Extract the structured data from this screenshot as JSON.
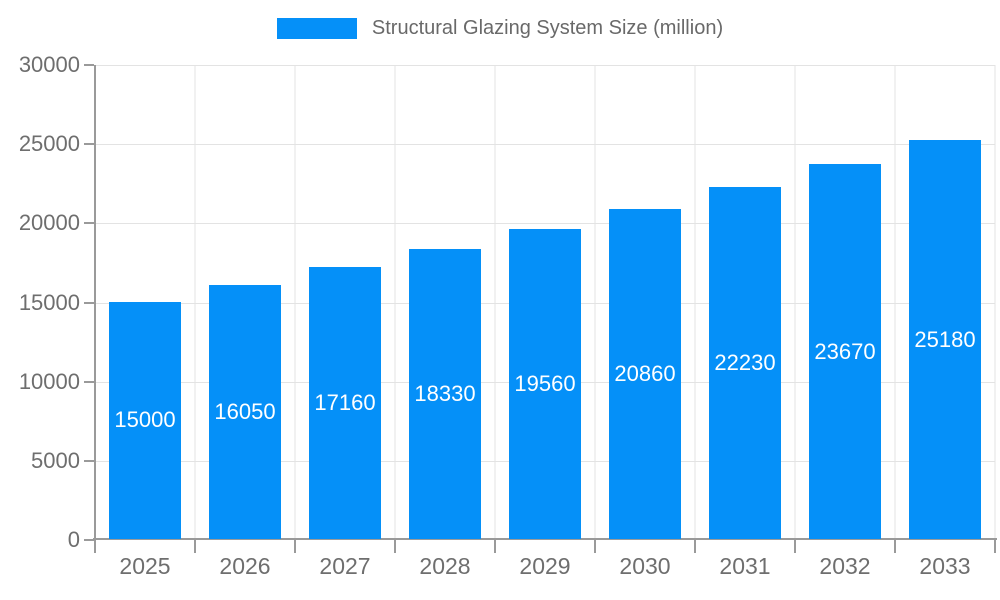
{
  "chart_data": {
    "type": "bar",
    "title": "",
    "legend_label": "Structural Glazing System Size (million)",
    "legend_position": "top",
    "categories": [
      "2025",
      "2026",
      "2027",
      "2028",
      "2029",
      "2030",
      "2031",
      "2032",
      "2033"
    ],
    "values": [
      15000,
      16050,
      17160,
      18330,
      19560,
      20860,
      22230,
      23670,
      25180
    ],
    "value_labels": [
      "15000",
      "16050",
      "17160",
      "18330",
      "19560",
      "20860",
      "22230",
      "23670",
      "25180"
    ],
    "xlabel": "",
    "ylabel": "",
    "ylim": [
      0,
      30000
    ],
    "yticks": [
      0,
      5000,
      10000,
      15000,
      20000,
      25000,
      30000
    ],
    "ytick_labels": [
      "0",
      "5000",
      "10000",
      "15000",
      "20000",
      "25000",
      "30000"
    ],
    "grid": true,
    "colors": {
      "bar": "#0590f8",
      "axis": "#9a9a9a",
      "grid": "#e3e3e3",
      "text": "#6e6e6e",
      "bar_label": "#ffffff",
      "background": "#ffffff"
    }
  }
}
